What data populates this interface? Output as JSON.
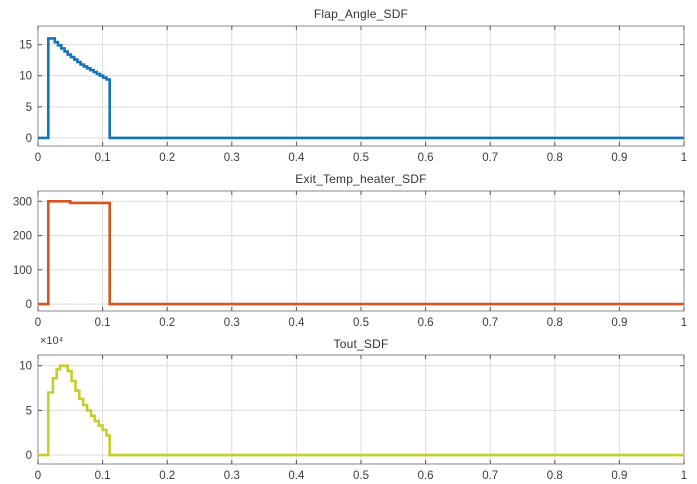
{
  "figure": {
    "background": "#ffffff",
    "grid_color": "#dcdcdc",
    "box_color": "#8a8a8a",
    "tick_color": "#555555",
    "label_color": "#3d3d3d"
  },
  "chart_data": [
    {
      "type": "stairs",
      "title": "Flap_Angle_SDF",
      "color": "#1474b8",
      "grid": true,
      "legend": null,
      "xlim": [
        0,
        1
      ],
      "ylim": [
        -1.3,
        18
      ],
      "xticks": [
        0,
        0.1,
        0.2,
        0.3,
        0.4,
        0.5,
        0.6,
        0.7,
        0.8,
        0.9,
        1
      ],
      "xtick_labels": [
        "0",
        "0.1",
        "0.2",
        "0.3",
        "0.4",
        "0.5",
        "0.6",
        "0.7",
        "0.8",
        "0.9",
        "1"
      ],
      "yticks": [
        0,
        5,
        10,
        15
      ],
      "ytick_labels": [
        "0",
        "5",
        "10",
        "15"
      ],
      "points": [
        [
          0,
          0
        ],
        [
          0.016,
          16
        ],
        [
          0.026,
          15.4
        ],
        [
          0.031,
          14.9
        ],
        [
          0.036,
          14.4
        ],
        [
          0.041,
          13.9
        ],
        [
          0.046,
          13.4
        ],
        [
          0.051,
          13.0
        ],
        [
          0.056,
          12.6
        ],
        [
          0.061,
          12.2
        ],
        [
          0.066,
          11.8
        ],
        [
          0.071,
          11.5
        ],
        [
          0.076,
          11.2
        ],
        [
          0.081,
          10.9
        ],
        [
          0.086,
          10.6
        ],
        [
          0.091,
          10.3
        ],
        [
          0.096,
          10.0
        ],
        [
          0.101,
          9.7
        ],
        [
          0.106,
          9.4
        ],
        [
          0.111,
          0
        ]
      ]
    },
    {
      "type": "stairs",
      "title": "Exit_Temp_heater_SDF",
      "color": "#d7541e",
      "grid": true,
      "legend": null,
      "xlim": [
        0,
        1
      ],
      "ylim": [
        -20,
        330
      ],
      "xticks": [
        0,
        0.1,
        0.2,
        0.3,
        0.4,
        0.5,
        0.6,
        0.7,
        0.8,
        0.9,
        1
      ],
      "xtick_labels": [
        "0",
        "0.1",
        "0.2",
        "0.3",
        "0.4",
        "0.5",
        "0.6",
        "0.7",
        "0.8",
        "0.9",
        "1"
      ],
      "yticks": [
        0,
        100,
        200,
        300
      ],
      "ytick_labels": [
        "0",
        "100",
        "200",
        "300"
      ],
      "points": [
        [
          0,
          0
        ],
        [
          0.016,
          300
        ],
        [
          0.05,
          295
        ],
        [
          0.111,
          0
        ]
      ]
    },
    {
      "type": "stairs",
      "title": "Tout_SDF",
      "color": "#c6ce2d",
      "grid": true,
      "legend": null,
      "exponent_label": "×10⁴",
      "y_unit_multiplier": 10000,
      "xlim": [
        0,
        1
      ],
      "ylim": [
        -1,
        11.2
      ],
      "xticks": [
        0,
        0.1,
        0.2,
        0.3,
        0.4,
        0.5,
        0.6,
        0.7,
        0.8,
        0.9,
        1
      ],
      "xtick_labels": [
        "0",
        "0.1",
        "0.2",
        "0.3",
        "0.4",
        "0.5",
        "0.6",
        "0.7",
        "0.8",
        "0.9",
        "1"
      ],
      "yticks": [
        0,
        5,
        10
      ],
      "ytick_labels": [
        "0",
        "5",
        "10"
      ],
      "points": [
        [
          0,
          0
        ],
        [
          0.016,
          7
        ],
        [
          0.023,
          8.6
        ],
        [
          0.029,
          9.6
        ],
        [
          0.034,
          10
        ],
        [
          0.046,
          9.4
        ],
        [
          0.052,
          8.3
        ],
        [
          0.058,
          7.2
        ],
        [
          0.064,
          6.3
        ],
        [
          0.07,
          5.6
        ],
        [
          0.076,
          5.0
        ],
        [
          0.082,
          4.4
        ],
        [
          0.088,
          3.8
        ],
        [
          0.094,
          3.3
        ],
        [
          0.1,
          2.8
        ],
        [
          0.106,
          2.2
        ],
        [
          0.111,
          0
        ]
      ]
    }
  ]
}
